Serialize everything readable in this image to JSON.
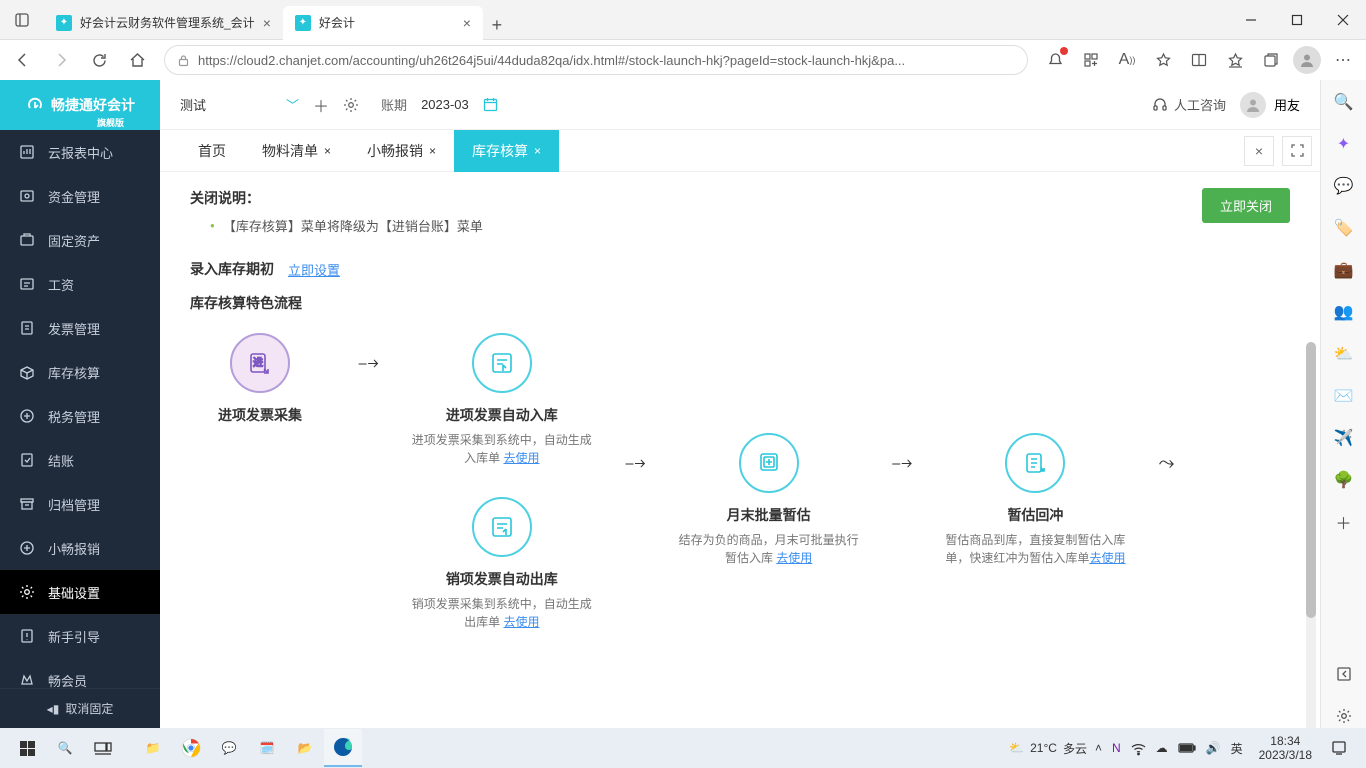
{
  "browser": {
    "tabs": [
      {
        "title": "好会计云财务软件管理系统_会计"
      },
      {
        "title": "好会计"
      }
    ],
    "url": "https://cloud2.chanjet.com/accounting/uh26t264j5ui/44duda82qa/idx.html#/stock-launch-hkj?pageId=stock-launch-hkj&pa..."
  },
  "brand": {
    "name": "畅捷通好会计",
    "edition": "旗舰版"
  },
  "sidebar": {
    "items": [
      {
        "label": "云报表中心",
        "active": false,
        "icon": "report"
      },
      {
        "label": "资金管理",
        "active": false,
        "icon": "fund"
      },
      {
        "label": "固定资产",
        "active": false,
        "icon": "asset"
      },
      {
        "label": "工资",
        "active": false,
        "icon": "wage"
      },
      {
        "label": "发票管理",
        "active": false,
        "icon": "invoice"
      },
      {
        "label": "库存核算",
        "active": false,
        "icon": "stock"
      },
      {
        "label": "税务管理",
        "active": false,
        "icon": "tax"
      },
      {
        "label": "结账",
        "active": false,
        "icon": "close"
      },
      {
        "label": "归档管理",
        "active": false,
        "icon": "archive"
      },
      {
        "label": "小畅报销",
        "active": false,
        "icon": "expense"
      },
      {
        "label": "基础设置",
        "active": true,
        "icon": "settings"
      },
      {
        "label": "新手引导",
        "active": false,
        "icon": "guide"
      },
      {
        "label": "畅会员",
        "active": false,
        "icon": "member"
      }
    ],
    "collapse": "取消固定"
  },
  "topbar": {
    "org": "测试",
    "period_label": "账期",
    "period_value": "2023-03",
    "consult": "人工咨询",
    "user": "用友"
  },
  "tabs": [
    {
      "label": "首页",
      "closable": false,
      "active": false
    },
    {
      "label": "物料清单",
      "closable": true,
      "active": false
    },
    {
      "label": "小畅报销",
      "closable": true,
      "active": false
    },
    {
      "label": "库存核算",
      "closable": true,
      "active": true
    }
  ],
  "content": {
    "close_title": "关闭说明：",
    "close_bullet": "【库存核算】菜单将降级为【进销台账】菜单",
    "close_btn": "立即关闭",
    "section1": {
      "title": "录入库存期初",
      "link": "立即设置"
    },
    "section2": {
      "title": "库存核算特色流程"
    },
    "flow": {
      "n1": {
        "title": "进项发票采集"
      },
      "n2": {
        "title": "进项发票自动入库",
        "desc": "进项发票采集到系统中，自动生成入库单",
        "link": "去使用"
      },
      "n3": {
        "title": "销项发票自动出库",
        "desc": "销项发票采集到系统中，自动生成出库单",
        "link": "去使用"
      },
      "n4": {
        "title": "月末批量暂估",
        "desc": "结存为负的商品，月末可批量执行暂估入库",
        "link": "去使用"
      },
      "n5": {
        "title": "暂估回冲",
        "desc": "暂估商品到库，直接复制暂估入库单，快速红冲为暂估入库单",
        "link": "去使用"
      }
    }
  },
  "edge_icons": [
    "search",
    "sparkle",
    "chat",
    "tag",
    "briefcase",
    "people",
    "cloud",
    "outlook",
    "send",
    "tree",
    "plus"
  ],
  "taskbar": {
    "weather": {
      "temp": "21°C",
      "text": "多云"
    },
    "ime": "英",
    "time": "18:34",
    "date": "2023/3/18"
  },
  "colors": {
    "accent": "#26c6da",
    "sidebar_bg": "#1f2a3a",
    "green_btn": "#4caf50",
    "link": "#3b8def"
  }
}
